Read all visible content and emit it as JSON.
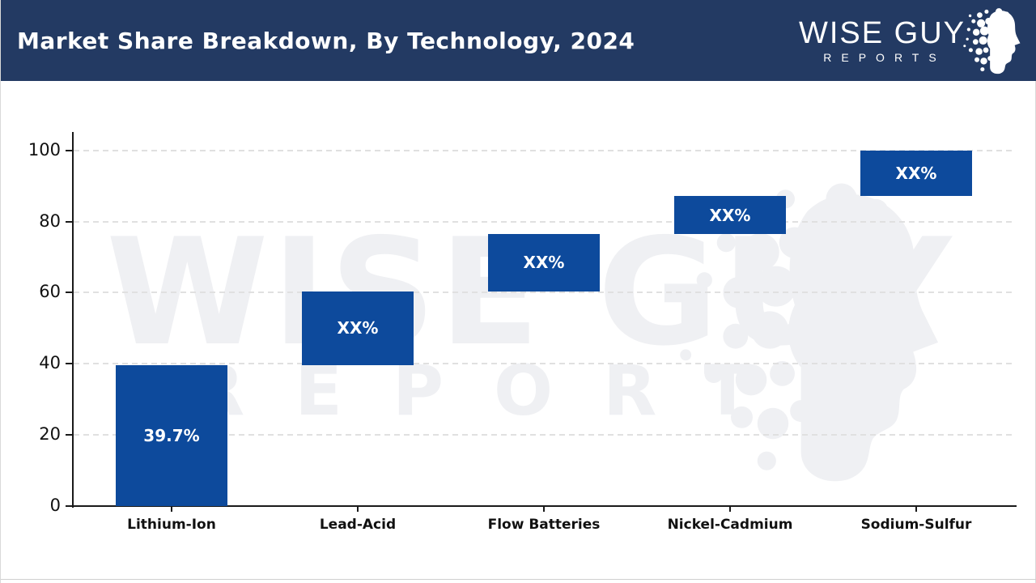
{
  "header": {
    "title": "Market Share Breakdown, By Technology, 2024",
    "logo": {
      "line1": "WISE GUY",
      "line2": "REPORTS"
    }
  },
  "watermark": {
    "line1": "WISE GUY",
    "line2": "REPORTS"
  },
  "colors": {
    "header_bg": "#233a63",
    "bar": "#0d4a9c",
    "bar_label": "#ffffff",
    "axis": "#1a1a1a",
    "grid": "#e0e0e0",
    "watermark": "#eff0f3",
    "text": "#111111"
  },
  "chart_data": {
    "type": "bar",
    "subtype": "floating-waterfall",
    "title": "Market Share Breakdown, By Technology, 2024",
    "xlabel": "",
    "ylabel": "",
    "categories": [
      "Lithium-Ion",
      "Lead-Acid",
      "Flow Batteries",
      "Nickel-Cadmium",
      "Sodium-Sulfur"
    ],
    "segments": [
      {
        "category": "Lithium-Ion",
        "start": 0,
        "end": 39.7,
        "value": 39.7,
        "label": "39.7%"
      },
      {
        "category": "Lead-Acid",
        "start": 39.7,
        "end": 60.4,
        "value": 20.7,
        "label": "XX%"
      },
      {
        "category": "Flow Batteries",
        "start": 60.4,
        "end": 76.5,
        "value": 16.1,
        "label": "XX%"
      },
      {
        "category": "Nickel-Cadmium",
        "start": 76.5,
        "end": 87.2,
        "value": 10.7,
        "label": "XX%"
      },
      {
        "category": "Sodium-Sulfur",
        "start": 87.2,
        "end": 100,
        "value": 12.8,
        "label": "XX%"
      }
    ],
    "yticks": [
      0,
      20,
      40,
      60,
      80,
      100
    ],
    "ylim": [
      0,
      105
    ],
    "grid": {
      "axis": "y",
      "style": "dashed",
      "color": "#e0e0e0"
    },
    "legend": "none",
    "bar_color": "#0d4a9c",
    "bar_label_color": "#ffffff"
  }
}
